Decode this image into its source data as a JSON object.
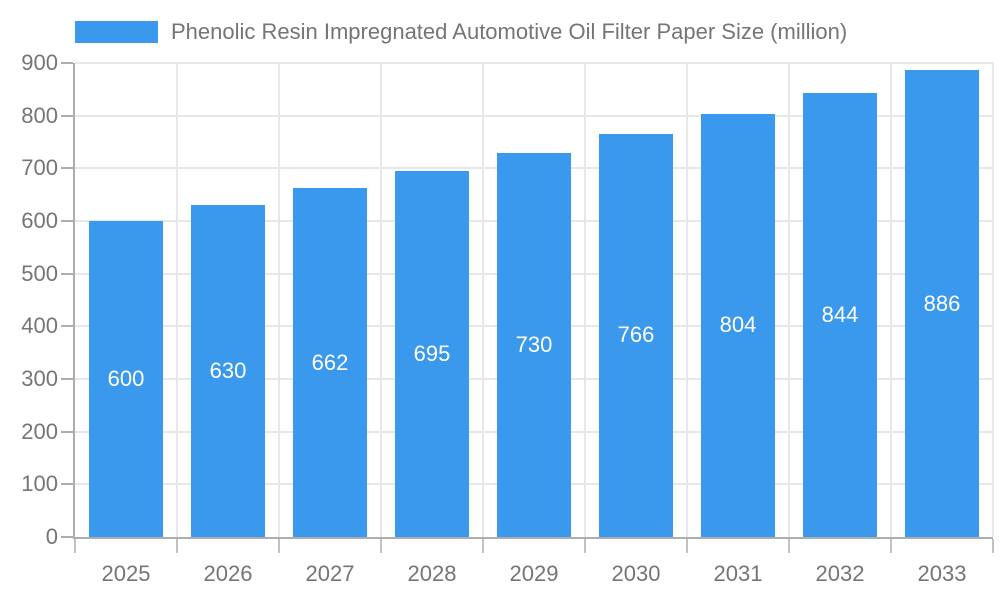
{
  "chart_data": {
    "type": "bar",
    "title": "",
    "xlabel": "",
    "ylabel": "",
    "categories": [
      "2025",
      "2026",
      "2027",
      "2028",
      "2029",
      "2030",
      "2031",
      "2032",
      "2033"
    ],
    "series": [
      {
        "name": "Phenolic Resin Impregnated Automotive Oil Filter Paper Size (million)",
        "values": [
          600,
          630,
          662,
          695,
          730,
          766,
          804,
          844,
          886
        ]
      }
    ],
    "ylim": [
      0,
      900
    ],
    "ytick_step": 100,
    "grid": true,
    "legend_position": "top-left",
    "value_labels": "inside-center"
  },
  "colors": {
    "accent": "#3A99EC",
    "grid": "#E7E7E7",
    "axis": "#ADADAD",
    "tick": "#C2C2C2",
    "text": "#757575",
    "bar_label": "#FFFFFF",
    "background": "#FFFFFF"
  }
}
